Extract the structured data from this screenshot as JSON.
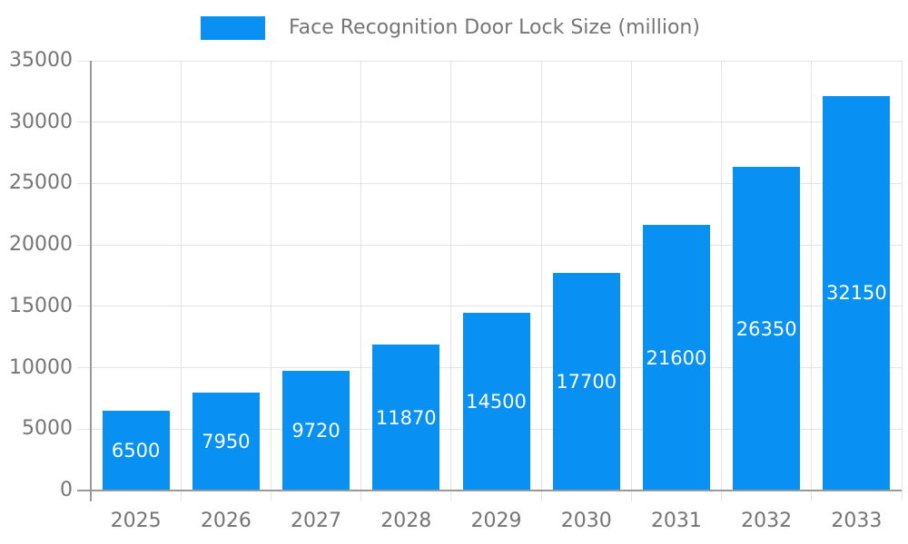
{
  "chart_data": {
    "type": "bar",
    "title": "Face Recognition Door Lock Size (million)",
    "legend": [
      "Face Recognition Door Lock Size (million)"
    ],
    "legend_position": "top",
    "categories": [
      "2025",
      "2026",
      "2027",
      "2028",
      "2029",
      "2030",
      "2031",
      "2032",
      "2033"
    ],
    "values": [
      6500,
      7950,
      9720,
      11870,
      14500,
      17700,
      21600,
      26350,
      32150
    ],
    "xlabel": "",
    "ylabel": "",
    "ylim": [
      0,
      35000
    ],
    "yticks": [
      0,
      5000,
      10000,
      15000,
      20000,
      25000,
      30000,
      35000
    ],
    "grid": true,
    "data_labels": "inside-center",
    "bar_color": "#0890f2",
    "bar_label_color": "#ffffff",
    "tick_label_color": "#757575",
    "axis_color": "#999999",
    "grid_color": "#e3e3e3"
  }
}
